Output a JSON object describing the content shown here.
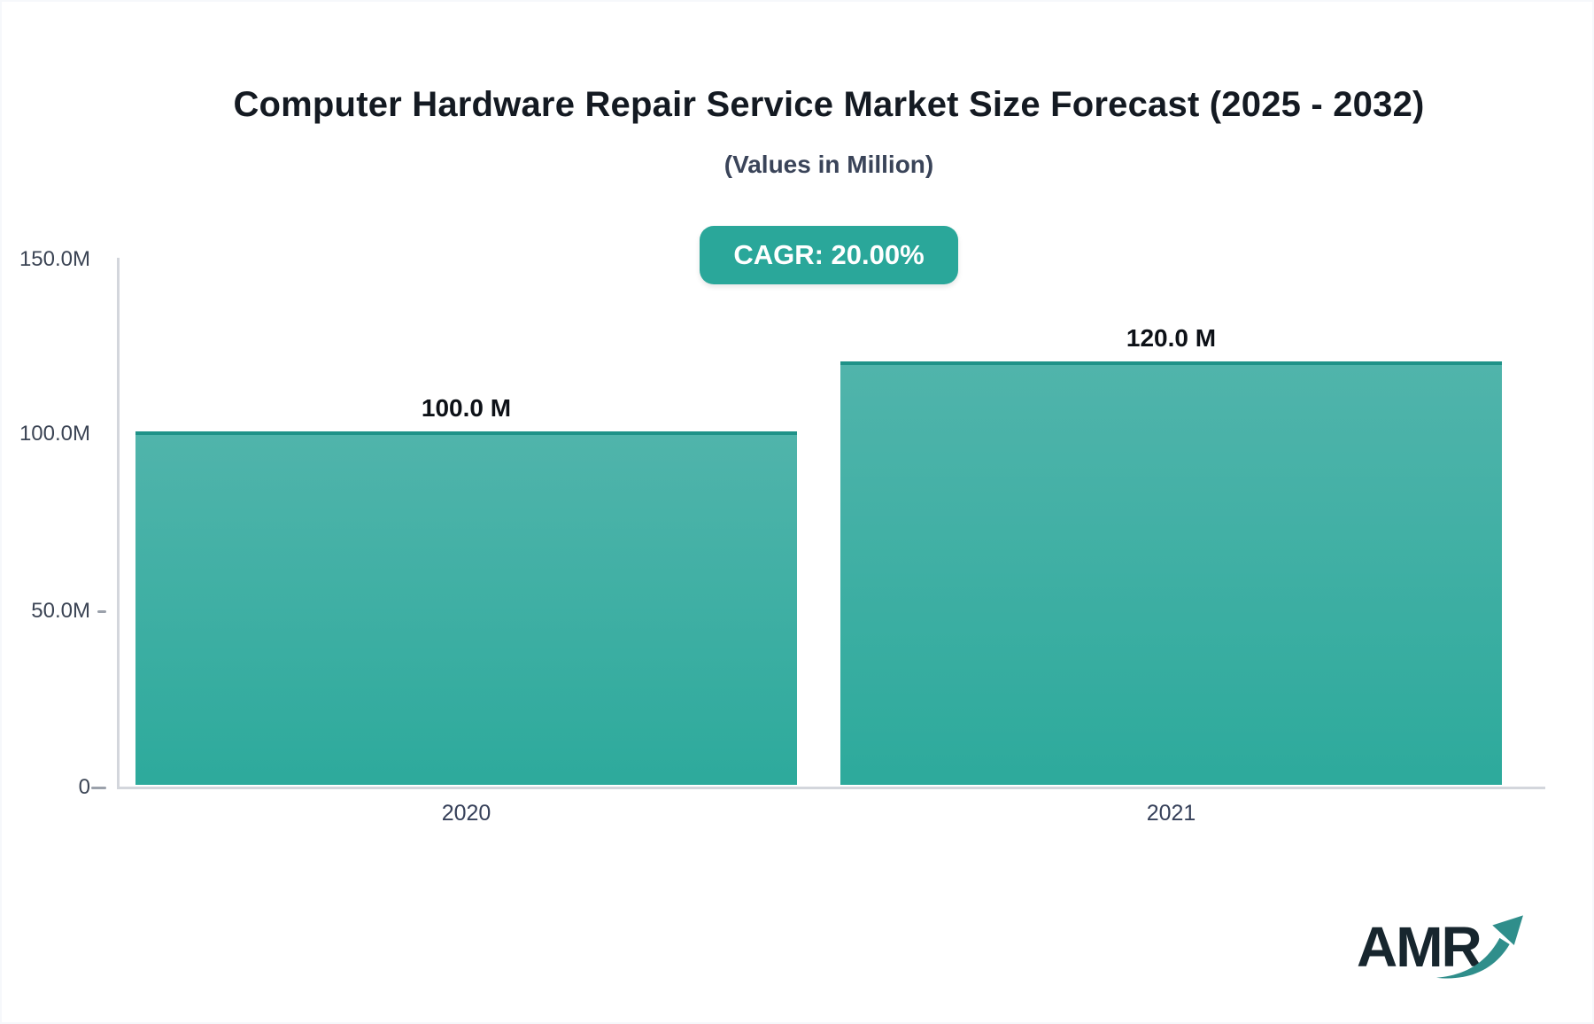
{
  "title": "Computer Hardware Repair Service Market Size Forecast (2025 - 2032)",
  "subtitle": "(Values in Million)",
  "cagr_badge": "CAGR: 20.00%",
  "logo": {
    "text": "AMR",
    "arrow_icon": "growth-arrow"
  },
  "colors": {
    "badge_teal": "#2AA79A",
    "bar_gradient_top": "#50B4AB",
    "bar_gradient_bottom": "#2DAA9C",
    "bar_stroke": "#1F9288",
    "axis_line": "#D3D6DC",
    "title_text": "#141A22",
    "axis_text": "#3B4454",
    "logo_dark": "#17262E",
    "logo_teal": "#2F8E8B"
  },
  "chart_data": {
    "type": "bar",
    "title": "Computer Hardware Repair Service Market Size Forecast (2025 - 2032)",
    "subtitle": "(Values in Million)",
    "categories": [
      "2020",
      "2021"
    ],
    "values": [
      100.0,
      120.0
    ],
    "value_labels": [
      "100.0 M",
      "120.0 M"
    ],
    "unit": "Million",
    "ylim": [
      0,
      150
    ],
    "yticks": [
      {
        "label": "150.0M",
        "value": 150
      },
      {
        "label": "100.0M",
        "value": 100
      },
      {
        "label": "50.0M",
        "value": 50
      },
      {
        "label": "0",
        "value": 0
      }
    ],
    "grid": false,
    "legend": false,
    "annotations": [
      "CAGR: 20.00%"
    ]
  }
}
